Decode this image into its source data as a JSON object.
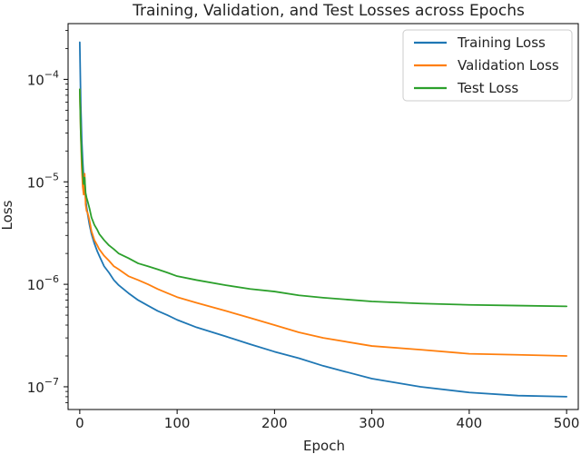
{
  "chart_data": {
    "type": "line",
    "title": "Training, Validation, and Test Losses across Epochs",
    "xlabel": "Epoch",
    "ylabel": "Loss",
    "yscale": "log",
    "xlim": [
      -12,
      512
    ],
    "ylim": [
      6e-08,
      0.00035
    ],
    "grid": false,
    "legend_position": "top-right",
    "x_ticks": [
      0,
      100,
      200,
      300,
      400,
      500
    ],
    "x_tick_labels": [
      "0",
      "100",
      "200",
      "300",
      "400",
      "500"
    ],
    "y_ticks": [
      1e-07,
      1e-06,
      1e-05,
      0.0001
    ],
    "y_tick_labels": [
      {
        "base": "10",
        "exp": "−7"
      },
      {
        "base": "10",
        "exp": "−6"
      },
      {
        "base": "10",
        "exp": "−5"
      },
      {
        "base": "10",
        "exp": "−4"
      }
    ],
    "x": [
      0,
      1,
      2,
      3,
      4,
      5,
      6,
      7,
      8,
      10,
      12,
      15,
      18,
      20,
      25,
      30,
      35,
      40,
      50,
      60,
      70,
      80,
      90,
      100,
      120,
      150,
      175,
      200,
      225,
      250,
      300,
      350,
      400,
      450,
      500
    ],
    "series": [
      {
        "name": "Training Loss",
        "color": "#1f77b4",
        "values": [
          0.00023,
          6e-05,
          2.6e-05,
          1.6e-05,
          1.1e-05,
          8.5e-06,
          6.8e-06,
          5.7e-06,
          4.9e-06,
          3.8e-06,
          3.1e-06,
          2.5e-06,
          2.1e-06,
          1.9e-06,
          1.5e-06,
          1.3e-06,
          1.1e-06,
          9.8e-07,
          8.2e-07,
          7e-07,
          6.2e-07,
          5.5e-07,
          5e-07,
          4.5e-07,
          3.8e-07,
          3.1e-07,
          2.6e-07,
          2.2e-07,
          1.9e-07,
          1.6e-07,
          1.2e-07,
          1e-07,
          8.8e-08,
          8.2e-08,
          8e-08
        ]
      },
      {
        "name": "Validation Loss",
        "color": "#ff7f0e",
        "values": [
          8e-05,
          3e-05,
          1.4e-05,
          9e-06,
          7.5e-06,
          1.2e-05,
          6e-06,
          5.2e-06,
          5e-06,
          4.2e-06,
          3.3e-06,
          2.7e-06,
          2.4e-06,
          2.2e-06,
          1.9e-06,
          1.7e-06,
          1.5e-06,
          1.4e-06,
          1.2e-06,
          1.1e-06,
          1e-06,
          9e-07,
          8.2e-07,
          7.5e-07,
          6.6e-07,
          5.5e-07,
          4.7e-07,
          4e-07,
          3.4e-07,
          3e-07,
          2.5e-07,
          2.3e-07,
          2.1e-07,
          2.05e-07,
          2e-07
        ]
      },
      {
        "name": "Test Loss",
        "color": "#2ca02c",
        "values": [
          8e-05,
          3e-05,
          1.8e-05,
          1.2e-05,
          9.5e-06,
          1.1e-05,
          7.8e-06,
          7e-06,
          6.5e-06,
          5.5e-06,
          4.5e-06,
          3.8e-06,
          3.4e-06,
          3.1e-06,
          2.7e-06,
          2.4e-06,
          2.2e-06,
          2e-06,
          1.8e-06,
          1.6e-06,
          1.5e-06,
          1.4e-06,
          1.3e-06,
          1.2e-06,
          1.1e-06,
          9.8e-07,
          9e-07,
          8.5e-07,
          7.8e-07,
          7.4e-07,
          6.8e-07,
          6.5e-07,
          6.3e-07,
          6.2e-07,
          6.1e-07
        ]
      }
    ]
  }
}
